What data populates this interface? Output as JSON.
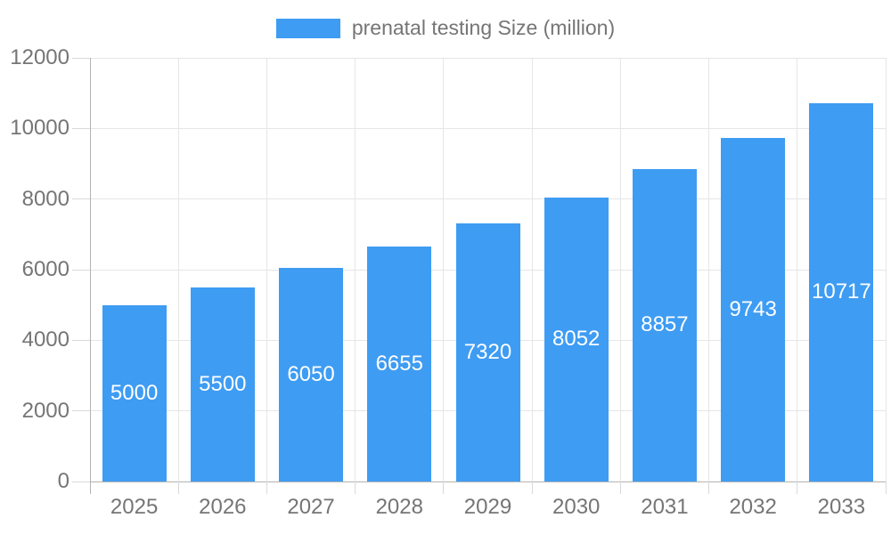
{
  "chart_data": {
    "type": "bar",
    "title": "",
    "legend": {
      "label": "prenatal testing Size (million)",
      "position": "top"
    },
    "categories": [
      "2025",
      "2026",
      "2027",
      "2028",
      "2029",
      "2030",
      "2031",
      "2032",
      "2033"
    ],
    "values": [
      5000,
      5500,
      6050,
      6655,
      7320,
      8052,
      8857,
      9743,
      10717
    ],
    "xlabel": "",
    "ylabel": "",
    "ylim": [
      0,
      12000
    ],
    "yticks": [
      0,
      2000,
      4000,
      6000,
      8000,
      10000,
      12000
    ],
    "grid": true,
    "colors": {
      "bar": "#3e9cf3",
      "bar_label": "#ffffff",
      "axis_text": "#757575",
      "grid_line": "#e6e6e6",
      "axis_line": "#b3b3b3",
      "tick_line": "#d9d9d9",
      "background": "#ffffff"
    }
  }
}
